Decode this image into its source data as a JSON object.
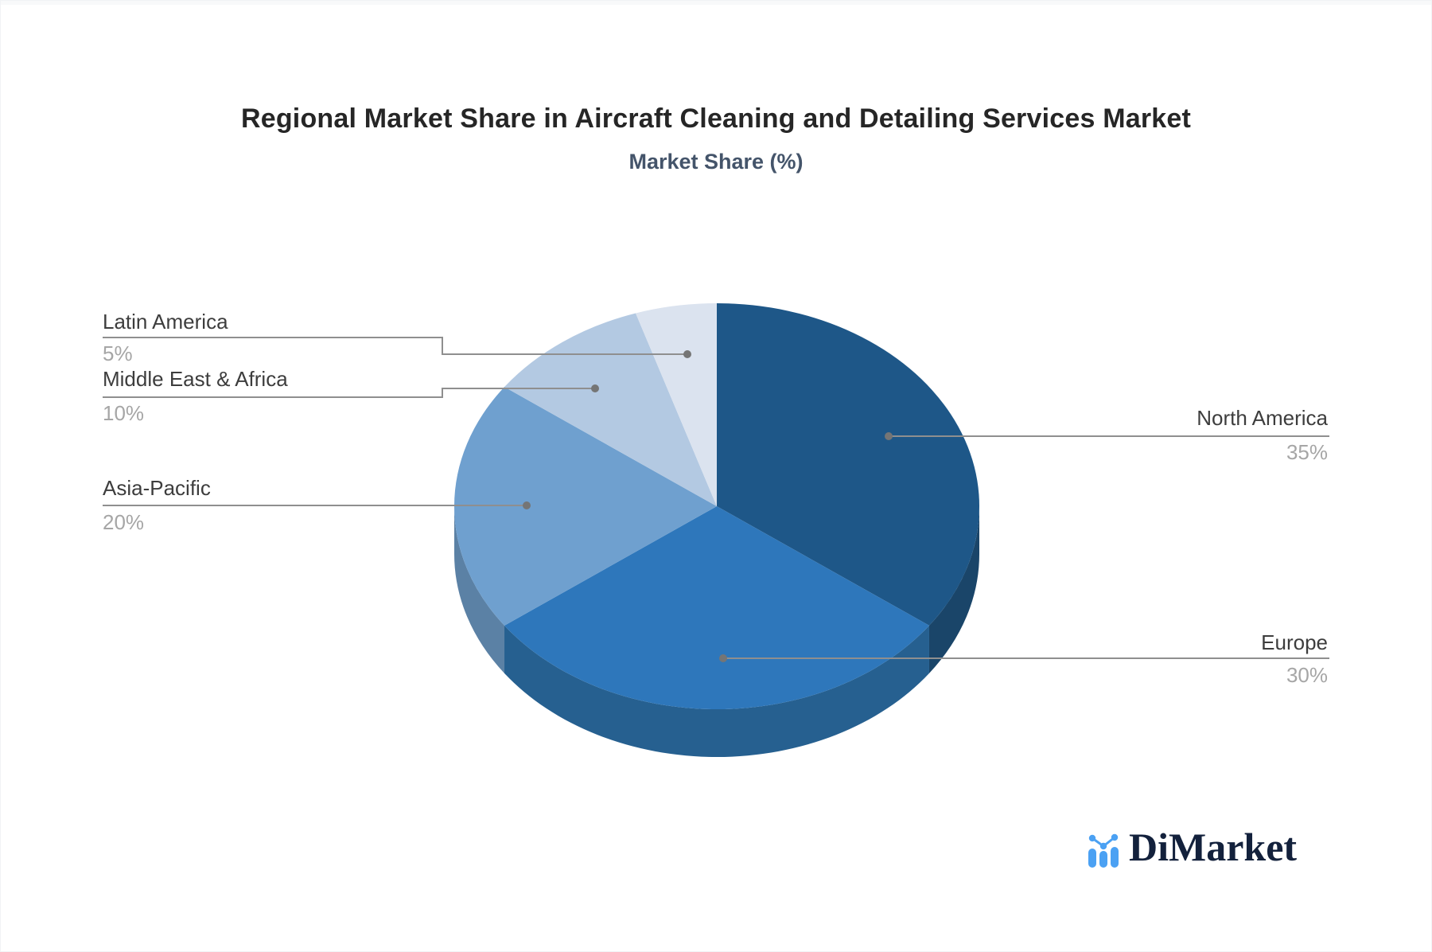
{
  "chart_data": {
    "type": "pie",
    "title": "Regional Market Share in Aircraft Cleaning and Detailing Services Market",
    "subtitle": "Market Share (%)",
    "unit": "%",
    "start_angle_deg": 0,
    "direction": "clockwise",
    "effect_3d": true,
    "legend_position": "callout-labels",
    "slices": [
      {
        "label": "North America",
        "value": 35,
        "pct_label": "35%",
        "color": "#1e5788",
        "side_color": "#1a4569",
        "callout_side": "right"
      },
      {
        "label": "Europe",
        "value": 30,
        "pct_label": "30%",
        "color": "#2e77bb",
        "side_color": "#266090",
        "callout_side": "right"
      },
      {
        "label": "Asia-Pacific",
        "value": 20,
        "pct_label": "20%",
        "color": "#6fa0cf",
        "side_color": "#5b81a5",
        "callout_side": "left"
      },
      {
        "label": "Middle East & Africa",
        "value": 10,
        "pct_label": "10%",
        "color": "#b3c9e2",
        "side_color": "#93a9c0",
        "callout_side": "left"
      },
      {
        "label": "Latin America",
        "value": 5,
        "pct_label": "5%",
        "color": "#dbe3ef",
        "side_color": "#b6c1d2",
        "callout_side": "left"
      }
    ]
  },
  "logo": {
    "text": "DiMarket"
  },
  "colors": {
    "background": "#ffffff",
    "title": "#262626",
    "subtitle": "#44546a",
    "label_text": "#3d3d3d",
    "pct_text": "#a6a6a6",
    "leader_line": "#8f8f8f",
    "leader_dot": "#757575",
    "logo_text": "#13213c",
    "logo_icon": "#4ba1f3"
  }
}
